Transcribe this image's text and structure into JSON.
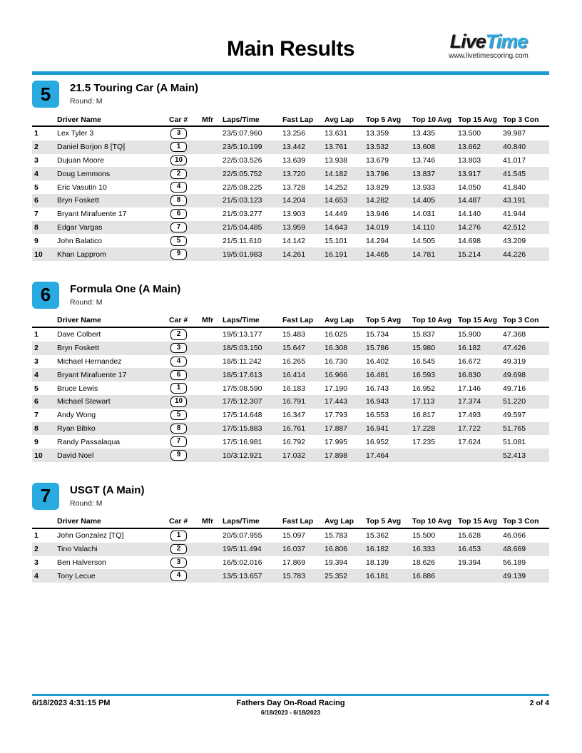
{
  "header": {
    "title": "Main Results",
    "logo": {
      "live": "Live",
      "time": "Time",
      "url": "www.livetimescoring.com"
    }
  },
  "colors": {
    "accent_badge": "#29ABE2",
    "rule": "#1F9BCE",
    "row_stripe": "#E4E4E4"
  },
  "columns": [
    "Driver Name",
    "Car #",
    "Mfr",
    "Laps/Time",
    "Fast Lap",
    "Avg Lap",
    "Top 5 Avg",
    "Top 10 Avg",
    "Top 15 Avg",
    "Top 3 Con"
  ],
  "sections": [
    {
      "number": "5",
      "title": "21.5 Touring Car  (A Main)",
      "round": "Round: M",
      "rows": [
        {
          "pos": "1",
          "driver": "Lex Tyler 3",
          "car": "3",
          "mfr": "",
          "laps_time": "23/5:07.960",
          "fast": "13.256",
          "avg": "13.631",
          "top5": "13.359",
          "top10": "13.435",
          "top15": "13.500",
          "top3con": "39.987"
        },
        {
          "pos": "2",
          "driver": "Daniel Borjon 8 [TQ]",
          "car": "1",
          "mfr": "",
          "laps_time": "23/5:10.199",
          "fast": "13.442",
          "avg": "13.761",
          "top5": "13.532",
          "top10": "13.608",
          "top15": "13.662",
          "top3con": "40.840"
        },
        {
          "pos": "3",
          "driver": "Dujuan Moore",
          "car": "10",
          "mfr": "",
          "laps_time": "22/5:03.526",
          "fast": "13.639",
          "avg": "13.938",
          "top5": "13.679",
          "top10": "13.746",
          "top15": "13.803",
          "top3con": "41.017"
        },
        {
          "pos": "4",
          "driver": "Doug Lemmons",
          "car": "2",
          "mfr": "",
          "laps_time": "22/5:05.752",
          "fast": "13.720",
          "avg": "14.182",
          "top5": "13.796",
          "top10": "13.837",
          "top15": "13.917",
          "top3con": "41.545"
        },
        {
          "pos": "5",
          "driver": "Eric Vasutin 10",
          "car": "4",
          "mfr": "",
          "laps_time": "22/5:08.225",
          "fast": "13.728",
          "avg": "14.252",
          "top5": "13.829",
          "top10": "13.933",
          "top15": "14.050",
          "top3con": "41.840"
        },
        {
          "pos": "6",
          "driver": "Bryn Foskett",
          "car": "8",
          "mfr": "",
          "laps_time": "21/5:03.123",
          "fast": "14.204",
          "avg": "14.653",
          "top5": "14.282",
          "top10": "14.405",
          "top15": "14.487",
          "top3con": "43.191"
        },
        {
          "pos": "7",
          "driver": "Bryant Mirafuente 17",
          "car": "6",
          "mfr": "",
          "laps_time": "21/5:03.277",
          "fast": "13.903",
          "avg": "14.449",
          "top5": "13.946",
          "top10": "14.031",
          "top15": "14.140",
          "top3con": "41.944"
        },
        {
          "pos": "8",
          "driver": "Edgar Vargas",
          "car": "7",
          "mfr": "",
          "laps_time": "21/5:04.485",
          "fast": "13.959",
          "avg": "14.643",
          "top5": "14.019",
          "top10": "14.110",
          "top15": "14.276",
          "top3con": "42.512"
        },
        {
          "pos": "9",
          "driver": "John Balatico",
          "car": "5",
          "mfr": "",
          "laps_time": "21/5:11.610",
          "fast": "14.142",
          "avg": "15.101",
          "top5": "14.294",
          "top10": "14.505",
          "top15": "14.698",
          "top3con": "43.209"
        },
        {
          "pos": "10",
          "driver": "Khan Lapprom",
          "car": "9",
          "mfr": "",
          "laps_time": "19/5:01.983",
          "fast": "14.261",
          "avg": "16.191",
          "top5": "14.465",
          "top10": "14.781",
          "top15": "15.214",
          "top3con": "44.226"
        }
      ]
    },
    {
      "number": "6",
      "title": "Formula One (A Main)",
      "round": "Round: M",
      "rows": [
        {
          "pos": "1",
          "driver": "Dave Colbert",
          "car": "2",
          "mfr": "",
          "laps_time": "19/5:13.177",
          "fast": "15.483",
          "avg": "16.025",
          "top5": "15.734",
          "top10": "15.837",
          "top15": "15.900",
          "top3con": "47.368"
        },
        {
          "pos": "2",
          "driver": "Bryn Foskett",
          "car": "3",
          "mfr": "",
          "laps_time": "18/5:03.150",
          "fast": "15.647",
          "avg": "16.308",
          "top5": "15.786",
          "top10": "15.980",
          "top15": "16.182",
          "top3con": "47.426"
        },
        {
          "pos": "3",
          "driver": "Michael Hernandez",
          "car": "4",
          "mfr": "",
          "laps_time": "18/5:11.242",
          "fast": "16.265",
          "avg": "16.730",
          "top5": "16.402",
          "top10": "16.545",
          "top15": "16.672",
          "top3con": "49.319"
        },
        {
          "pos": "4",
          "driver": "Bryant Mirafuente 17",
          "car": "6",
          "mfr": "",
          "laps_time": "18/5:17.613",
          "fast": "16.414",
          "avg": "16.966",
          "top5": "16.481",
          "top10": "16.593",
          "top15": "16.830",
          "top3con": "49.698"
        },
        {
          "pos": "5",
          "driver": "Bruce Lewis",
          "car": "1",
          "mfr": "",
          "laps_time": "17/5:08.590",
          "fast": "16.183",
          "avg": "17.190",
          "top5": "16.743",
          "top10": "16.952",
          "top15": "17.146",
          "top3con": "49.716"
        },
        {
          "pos": "6",
          "driver": "Michael Stewart",
          "car": "10",
          "mfr": "",
          "laps_time": "17/5:12.307",
          "fast": "16.791",
          "avg": "17.443",
          "top5": "16.943",
          "top10": "17.113",
          "top15": "17.374",
          "top3con": "51.220"
        },
        {
          "pos": "7",
          "driver": "Andy Wong",
          "car": "5",
          "mfr": "",
          "laps_time": "17/5:14.648",
          "fast": "16.347",
          "avg": "17.793",
          "top5": "16.553",
          "top10": "16.817",
          "top15": "17.493",
          "top3con": "49.597"
        },
        {
          "pos": "8",
          "driver": "Ryan Bibko",
          "car": "8",
          "mfr": "",
          "laps_time": "17/5:15.883",
          "fast": "16.761",
          "avg": "17.887",
          "top5": "16.941",
          "top10": "17.228",
          "top15": "17.722",
          "top3con": "51.765"
        },
        {
          "pos": "9",
          "driver": "Randy Passalaqua",
          "car": "7",
          "mfr": "",
          "laps_time": "17/5:16.981",
          "fast": "16.792",
          "avg": "17.995",
          "top5": "16.952",
          "top10": "17.235",
          "top15": "17.624",
          "top3con": "51.081"
        },
        {
          "pos": "10",
          "driver": "David Noel",
          "car": "9",
          "mfr": "",
          "laps_time": "10/3:12.921",
          "fast": "17.032",
          "avg": "17.898",
          "top5": "17.464",
          "top10": "",
          "top15": "",
          "top3con": "52.413"
        }
      ]
    },
    {
      "number": "7",
      "title": "USGT (A Main)",
      "round": "Round: M",
      "rows": [
        {
          "pos": "1",
          "driver": "John Gonzalez [TQ]",
          "car": "1",
          "mfr": "",
          "laps_time": "20/5:07.955",
          "fast": "15.097",
          "avg": "15.783",
          "top5": "15.362",
          "top10": "15.500",
          "top15": "15.628",
          "top3con": "46.066"
        },
        {
          "pos": "2",
          "driver": "Tino Valachi",
          "car": "2",
          "mfr": "",
          "laps_time": "19/5:11.494",
          "fast": "16.037",
          "avg": "16.806",
          "top5": "16.182",
          "top10": "16.333",
          "top15": "16.453",
          "top3con": "48.669"
        },
        {
          "pos": "3",
          "driver": "Ben Halverson",
          "car": "3",
          "mfr": "",
          "laps_time": "16/5:02.016",
          "fast": "17.869",
          "avg": "19.394",
          "top5": "18.139",
          "top10": "18.626",
          "top15": "19.394",
          "top3con": "56.189"
        },
        {
          "pos": "4",
          "driver": "Tony Lecue",
          "car": "4",
          "mfr": "",
          "laps_time": "13/5:13.657",
          "fast": "15.783",
          "avg": "25.352",
          "top5": "16.181",
          "top10": "16.886",
          "top15": "",
          "top3con": "49.139"
        }
      ]
    }
  ],
  "footer": {
    "datetime": "6/18/2023 4:31:15 PM",
    "event": "Fathers Day On-Road Racing",
    "dates": "6/18/2023 - 6/18/2023",
    "page": "2 of 4"
  }
}
